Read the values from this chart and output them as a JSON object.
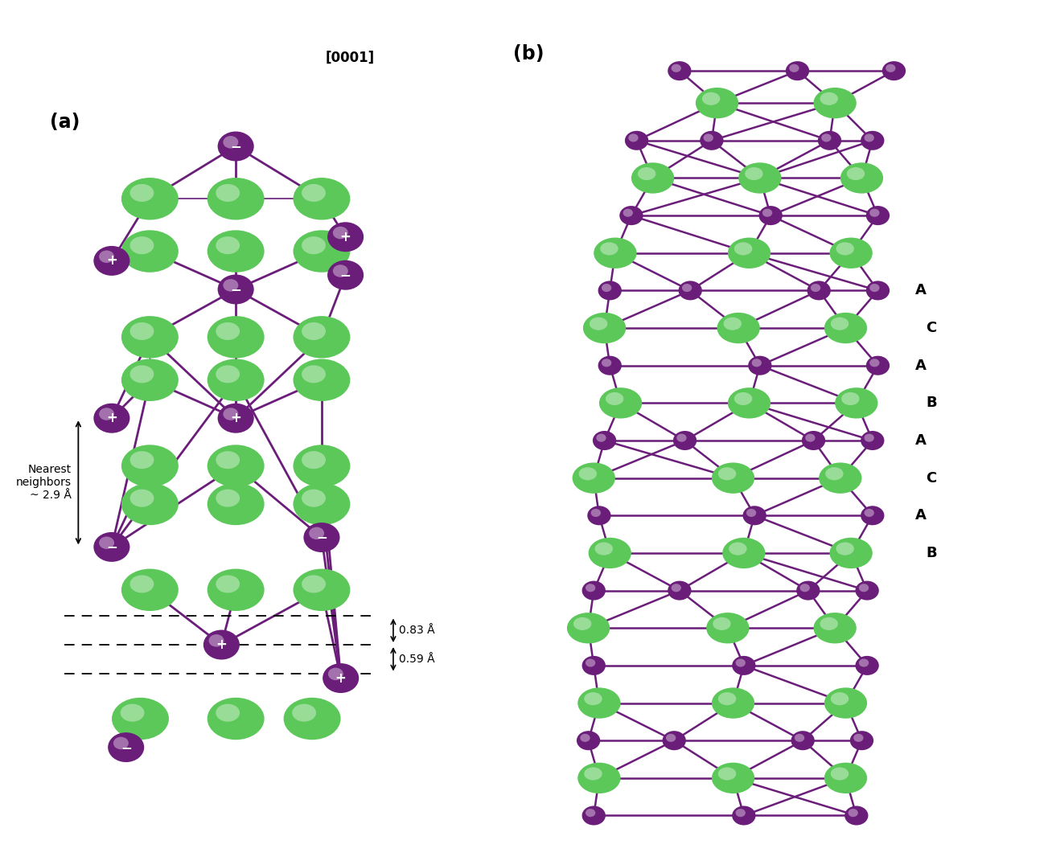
{
  "purple_color": "#6B1D7A",
  "green_color": "#5CC85A",
  "bond_color": "#6B1D7A",
  "bg_color": "#FFFFFF",
  "panel_a_label": "(a)",
  "panel_b_label": "(b)",
  "direction_label": "[0001]",
  "nearest_label": "Nearest\nneighbors\n~ 2.9 Å",
  "dim_083": "0.83 Å",
  "dim_059": "0.59 Å",
  "figsize": [
    13.08,
    10.76
  ],
  "dpi": 100,
  "panel_a": {
    "xlim": [
      -1.2,
      8.5
    ],
    "ylim": [
      -1.5,
      12.5
    ],
    "PR": 0.38,
    "GR": 0.52,
    "bond_lw": 2.0
  },
  "panel_b": {
    "xlim": [
      -1.0,
      9.5
    ],
    "ylim": [
      -1.0,
      14.5
    ],
    "PR": 0.22,
    "GR": 0.32,
    "bond_lw": 1.8
  }
}
